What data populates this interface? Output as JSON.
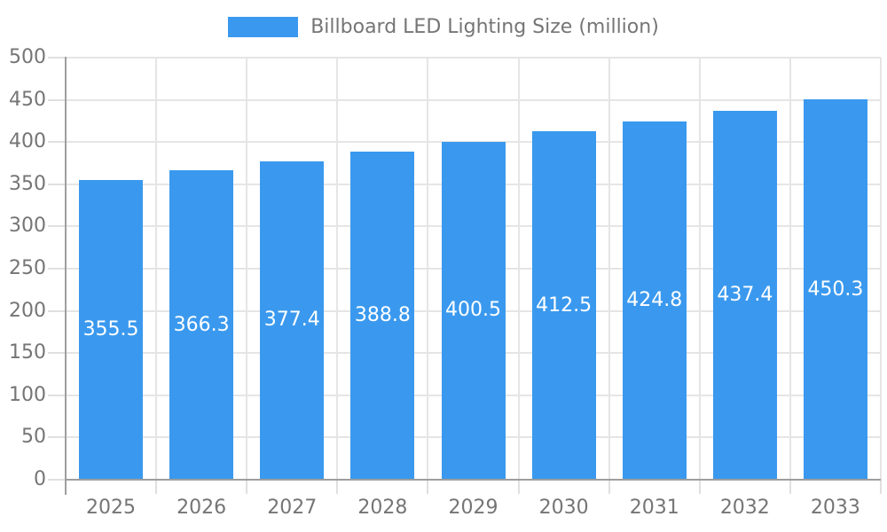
{
  "legend": {
    "label": "Billboard LED Lighting Size (million)"
  },
  "chart_data": {
    "type": "bar",
    "title": "",
    "xlabel": "",
    "ylabel": "",
    "categories": [
      "2025",
      "2026",
      "2027",
      "2028",
      "2029",
      "2030",
      "2031",
      "2032",
      "2033"
    ],
    "values": [
      355.5,
      366.3,
      377.4,
      388.8,
      400.5,
      412.5,
      424.8,
      437.4,
      450.3
    ],
    "series_name": "Billboard LED Lighting Size (million)",
    "ylim": [
      0,
      500
    ],
    "ytick_step": 50,
    "ytick_labels": [
      "0",
      "50",
      "100",
      "150",
      "200",
      "250",
      "300",
      "350",
      "400",
      "450",
      "500"
    ],
    "grid": true,
    "legend_position": "top-center",
    "bar_labels_inside": true,
    "colors": {
      "bar": "#3a99ee",
      "bar_label_text": "#ffffff",
      "axis_text": "#757575",
      "gridline": "#e5e5e5",
      "tick": "#e0e0e0",
      "axis_line": "#9e9e9e",
      "background": "#ffffff"
    }
  }
}
